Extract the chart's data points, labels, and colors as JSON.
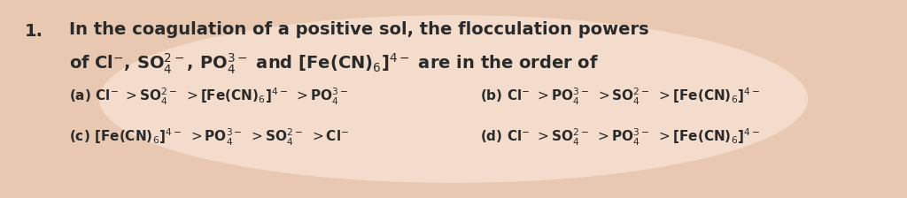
{
  "background_color": "#e8c8b0",
  "center_color": "#f5e0d0",
  "text_color": "#2a2a2a",
  "fig_width": 10.24,
  "fig_height": 2.24,
  "dpi": 100,
  "q_num": "1.",
  "q_line1": "In the coagulation of a positive sol, the flocculation powers",
  "q_line2_plain": "of Cl",
  "q_line2_rest": ", SO",
  "q_line2_end": ", PO",
  "q_line2_and": "  and [Fe(CN)",
  "q_line2_final": "]",
  "q_line2_order": " are in the order of",
  "opt_a": "(a) Cl",
  "opt_a2": " >SO",
  "opt_a3": " >[Fe(CN)",
  "opt_a4": "]",
  "opt_a5": " >PO",
  "opt_b": "(b) Cl",
  "opt_b2": " >PO",
  "opt_b3": " >SO",
  "opt_b4": " >[Fe(CN)",
  "opt_b5": "]",
  "opt_c": "(c) [Fe(CN)",
  "opt_c2": "]",
  "opt_c3": " >PO",
  "opt_c4": " >SO",
  "opt_c5": " >Cl",
  "opt_d": "(d) Cl",
  "opt_d2": " >SO",
  "opt_d3": " >PO",
  "opt_d4": " >[Fe(CN)",
  "opt_d5": "]",
  "font_size_q": 14,
  "font_size_opt": 11
}
